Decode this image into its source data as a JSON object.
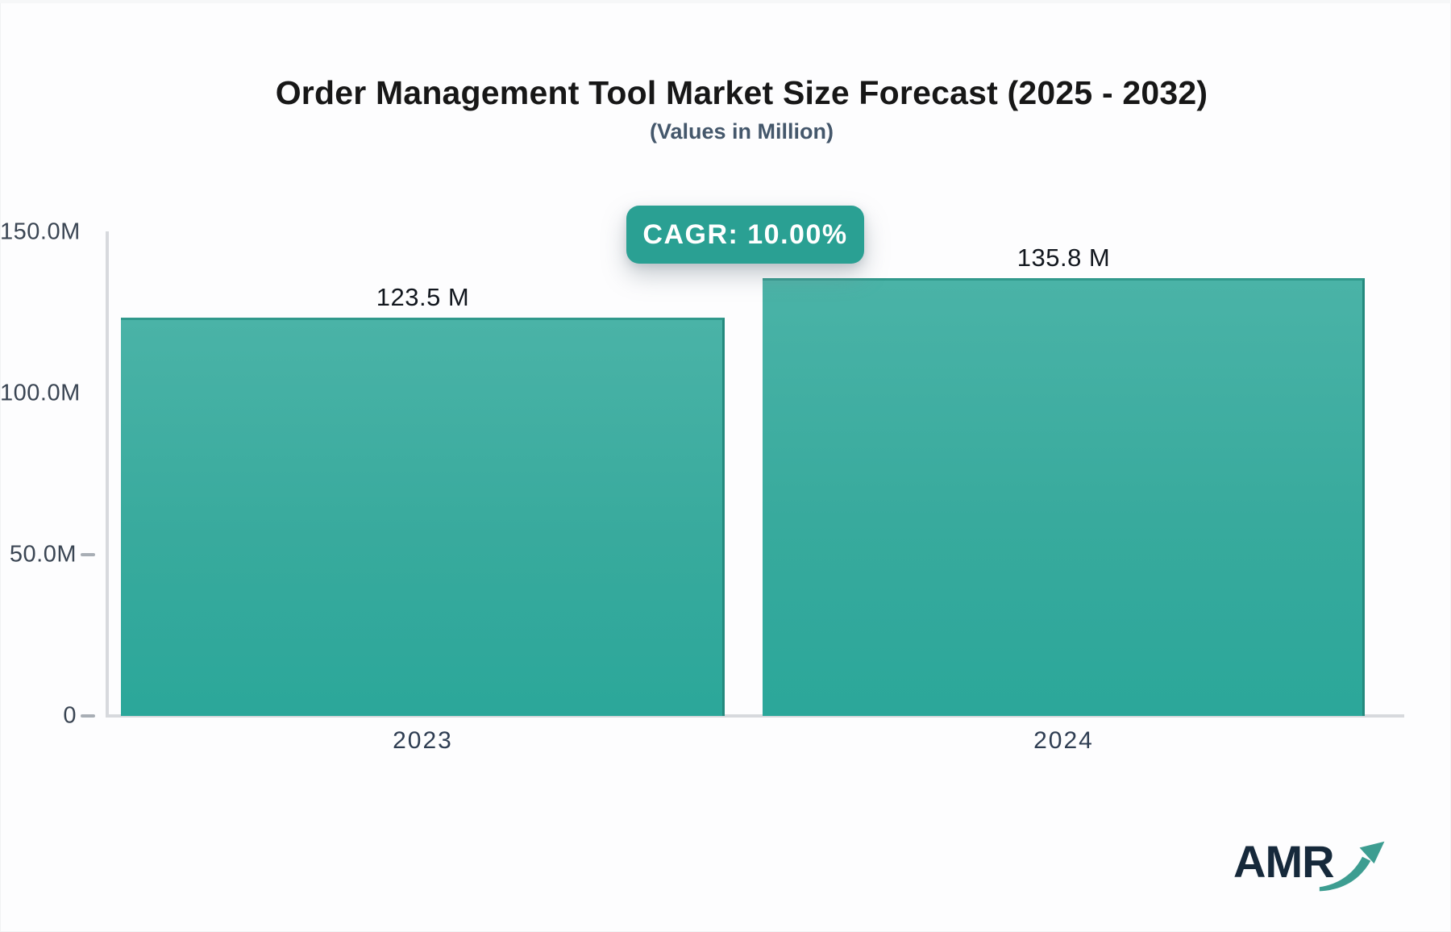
{
  "chart_data": {
    "type": "bar",
    "title": "Order Management Tool Market Size Forecast (2025 - 2032)",
    "subtitle": "(Values in Million)",
    "cagr_label": "CAGR: 10.00%",
    "categories": [
      "2023",
      "2024"
    ],
    "values": [
      123.5,
      135.8
    ],
    "bar_labels": [
      "123.5 M",
      "135.8 M"
    ],
    "unit": "Million",
    "ylim": [
      0,
      150
    ],
    "y_ticks": [
      "150.0M",
      "100.0M",
      "50.0M",
      "0"
    ],
    "y_tick_values": [
      150,
      100,
      50,
      0
    ],
    "y_ticks_with_dash": [
      50,
      0
    ],
    "grid": false,
    "legend": "none",
    "colors": {
      "bar_gradient_top": "#4ab3a7",
      "bar_gradient_bottom": "#2ba79a",
      "bar_edge": "#31998c",
      "badge_background": "#2aa093",
      "badge_text": "#ffffff",
      "title_text": "#171717",
      "subtitle_text": "#44576b",
      "axis_line": "#d7d9dd",
      "tick_text": "#3a4553",
      "category_text": "#2e3d52",
      "logo_text": "#16293b",
      "logo_arrow": "#3d9d91"
    }
  },
  "logo": {
    "text": "AMR"
  }
}
